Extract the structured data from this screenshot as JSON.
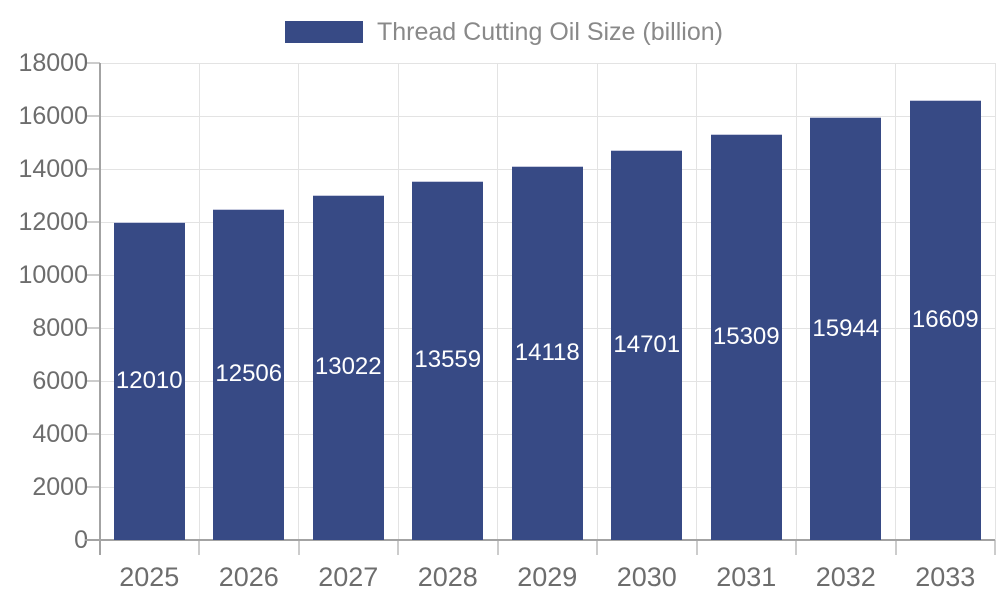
{
  "legend": {
    "label": "Thread Cutting Oil Size (billion)"
  },
  "chart_data": {
    "type": "bar",
    "title": "Thread Cutting Oil Size (billion)",
    "categories": [
      "2025",
      "2026",
      "2027",
      "2028",
      "2029",
      "2030",
      "2031",
      "2032",
      "2033"
    ],
    "values": [
      12010,
      12506,
      13022,
      13559,
      14118,
      14701,
      15309,
      15944,
      16609
    ],
    "value_labels": [
      "12010",
      "12506",
      "13022",
      "13559",
      "14118",
      "14701",
      "15309",
      "15944",
      "16609"
    ],
    "xlabel": "",
    "ylabel": "",
    "ylim": [
      0,
      18000
    ],
    "ytick_step": 2000,
    "ytick_labels": [
      "0",
      "2000",
      "4000",
      "6000",
      "8000",
      "10000",
      "12000",
      "14000",
      "16000",
      "18000"
    ],
    "grid": true,
    "legend_position": "top-center",
    "colors": {
      "bar": "#374a85",
      "bar_top_edge": "#c7cbdf",
      "value_label": "#ffffff",
      "axis_label": "#6d6d6d",
      "legend_text": "#898989",
      "gridline": "#e3e3e3",
      "axis_line": "#a3a3a3",
      "tick": "#cccccc",
      "background": "#ffffff"
    }
  }
}
